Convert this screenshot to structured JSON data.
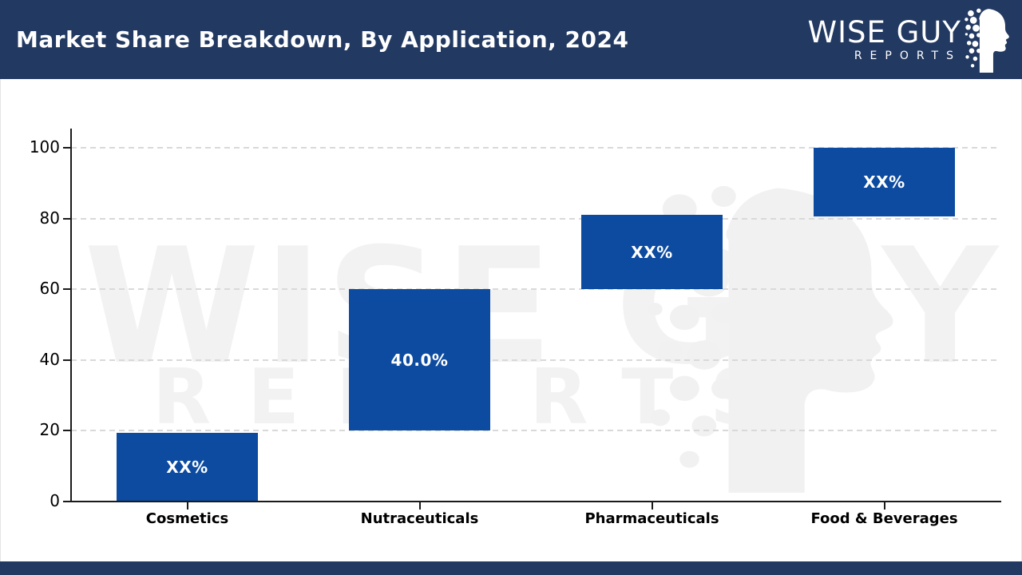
{
  "header": {
    "title": "Market Share Breakdown, By Application, 2024"
  },
  "logo": {
    "line1": "WISE GUY",
    "line2": "REPORTS"
  },
  "watermark": {
    "line1": "WISE GUY",
    "line2": "REPORTS"
  },
  "colors": {
    "header_bg": "#223962",
    "footer_bg": "#223962",
    "bar": "#0c4ba0",
    "bar_label": "#ffffff",
    "grid": "#d9d9d9",
    "axis": "#1a1a1a",
    "watermark": "#f2f2f2"
  },
  "chart_data": {
    "type": "bar",
    "variant": "floating-waterfall",
    "title": "Market Share Breakdown, By Application, 2024",
    "categories": [
      "Cosmetics",
      "Nutraceuticals",
      "Pharmaceuticals",
      "Food & Beverages"
    ],
    "bars": [
      {
        "category": "Cosmetics",
        "start": 0,
        "end": 19.5,
        "label": "XX%"
      },
      {
        "category": "Nutraceuticals",
        "start": 20,
        "end": 60,
        "label": "40.0%"
      },
      {
        "category": "Pharmaceuticals",
        "start": 60,
        "end": 81,
        "label": "XX%"
      },
      {
        "category": "Food & Beverages",
        "start": 80.5,
        "end": 100,
        "label": "XX%"
      }
    ],
    "xlabel": "",
    "ylabel": "",
    "ylim": [
      0,
      100
    ],
    "yticks": [
      0,
      20,
      40,
      60,
      80,
      100
    ],
    "grid": "horizontal-dashed",
    "legend": "none",
    "bar_color": "#0c4ba0",
    "value_label_color": "#ffffff"
  }
}
